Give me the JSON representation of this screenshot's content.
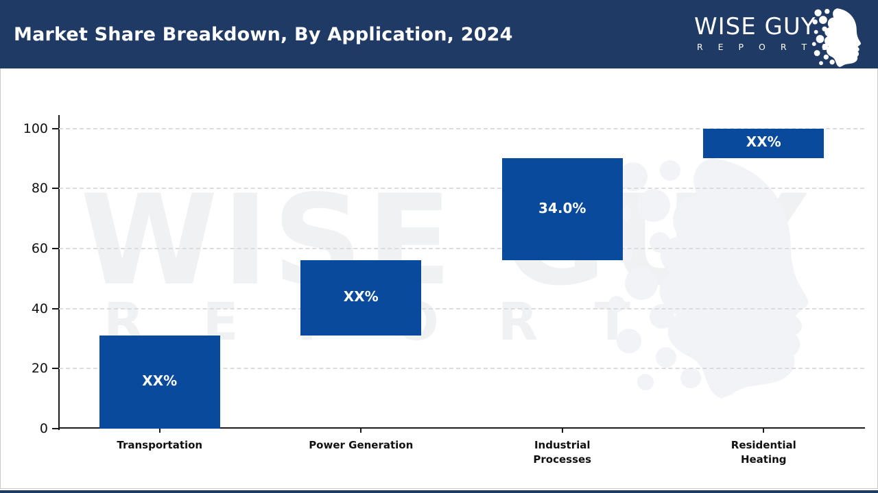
{
  "header": {
    "title": "Market Share Breakdown, By Application, 2024",
    "bg_color": "#203a66",
    "brand": {
      "name_top": "WISE GUY",
      "name_bottom": "R E P O R T S"
    }
  },
  "watermark": {
    "line1": "WISE GUY",
    "line2": "REPORTS"
  },
  "footer": {
    "bar_color": "#203a66"
  },
  "chart_data": {
    "type": "bar",
    "subtype": "waterfall",
    "title": "Market Share Breakdown, By Application, 2024",
    "categories": [
      "Transportation",
      "Power Generation",
      "Industrial Processes",
      "Residential Heating"
    ],
    "category_lines": [
      [
        "Transportation"
      ],
      [
        "Power Generation"
      ],
      [
        "Industrial",
        "Processes"
      ],
      [
        "Residential",
        "Heating"
      ]
    ],
    "values": [
      31,
      25,
      34,
      10
    ],
    "segments": [
      {
        "category": "Transportation",
        "start": 0,
        "end": 31,
        "value_label": "XX%"
      },
      {
        "category": "Power Generation",
        "start": 31,
        "end": 56,
        "value_label": "XX%"
      },
      {
        "category": "Industrial Processes",
        "start": 56,
        "end": 90,
        "value_label": "34.0%"
      },
      {
        "category": "Residential Heating",
        "start": 90,
        "end": 100,
        "value_label": "XX%"
      }
    ],
    "xlabel": "",
    "ylabel": "",
    "ylim": [
      0,
      100
    ],
    "yticks": [
      0,
      20,
      40,
      60,
      80,
      100
    ],
    "bar_color": "#0a4a9c",
    "grid": "horizontal-dashed",
    "legend": "none"
  }
}
